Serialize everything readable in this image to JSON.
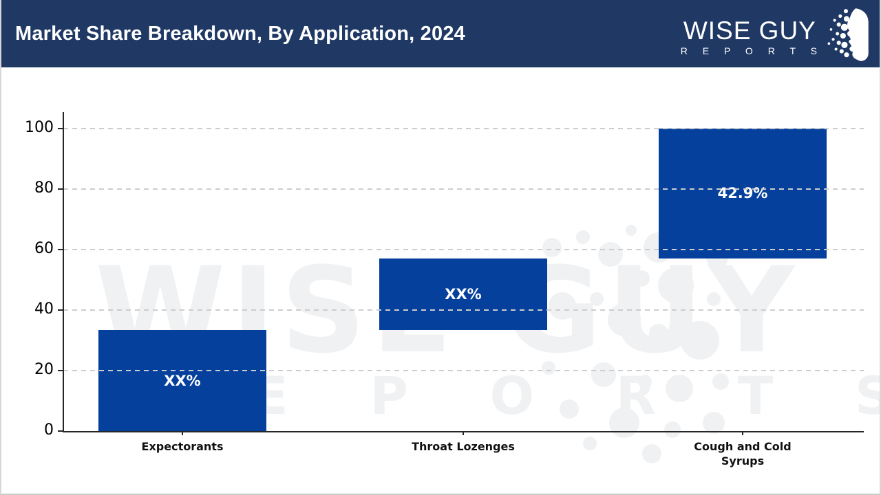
{
  "header": {
    "title": "Market Share Breakdown, By Application, 2024",
    "logo": {
      "line1": "WISE GUY",
      "line2": "R E P O R T S"
    }
  },
  "watermark": {
    "line1": "WISE GUY",
    "line2": "R E P O R T S"
  },
  "chart_data": {
    "type": "bar",
    "subtype": "waterfall-floating-bars",
    "title": "Market Share Breakdown, By Application, 2024",
    "categories": [
      "Expectorants",
      "Throat Lozenges",
      "Cough and Cold Syrups"
    ],
    "bars": [
      {
        "category": "Expectorants",
        "label": "XX%",
        "start": 0,
        "end": 33.3
      },
      {
        "category": "Throat Lozenges",
        "label": "XX%",
        "start": 33.3,
        "end": 57.1
      },
      {
        "category": "Cough and Cold Syrups",
        "label": "42.9%",
        "start": 57.1,
        "end": 100
      }
    ],
    "xlabel": "",
    "ylabel": "",
    "ylim": [
      0,
      100
    ],
    "yticks": [
      0,
      20,
      40,
      60,
      80,
      100
    ],
    "grid": "horizontal-dashed",
    "legend": "none",
    "colors": {
      "bar": "#05419c",
      "header_bg": "#1f3864",
      "grid": "#cdcdcd",
      "axis": "#262626",
      "watermark": "#f0f1f3",
      "bar_label_text": "#ffffff"
    }
  }
}
